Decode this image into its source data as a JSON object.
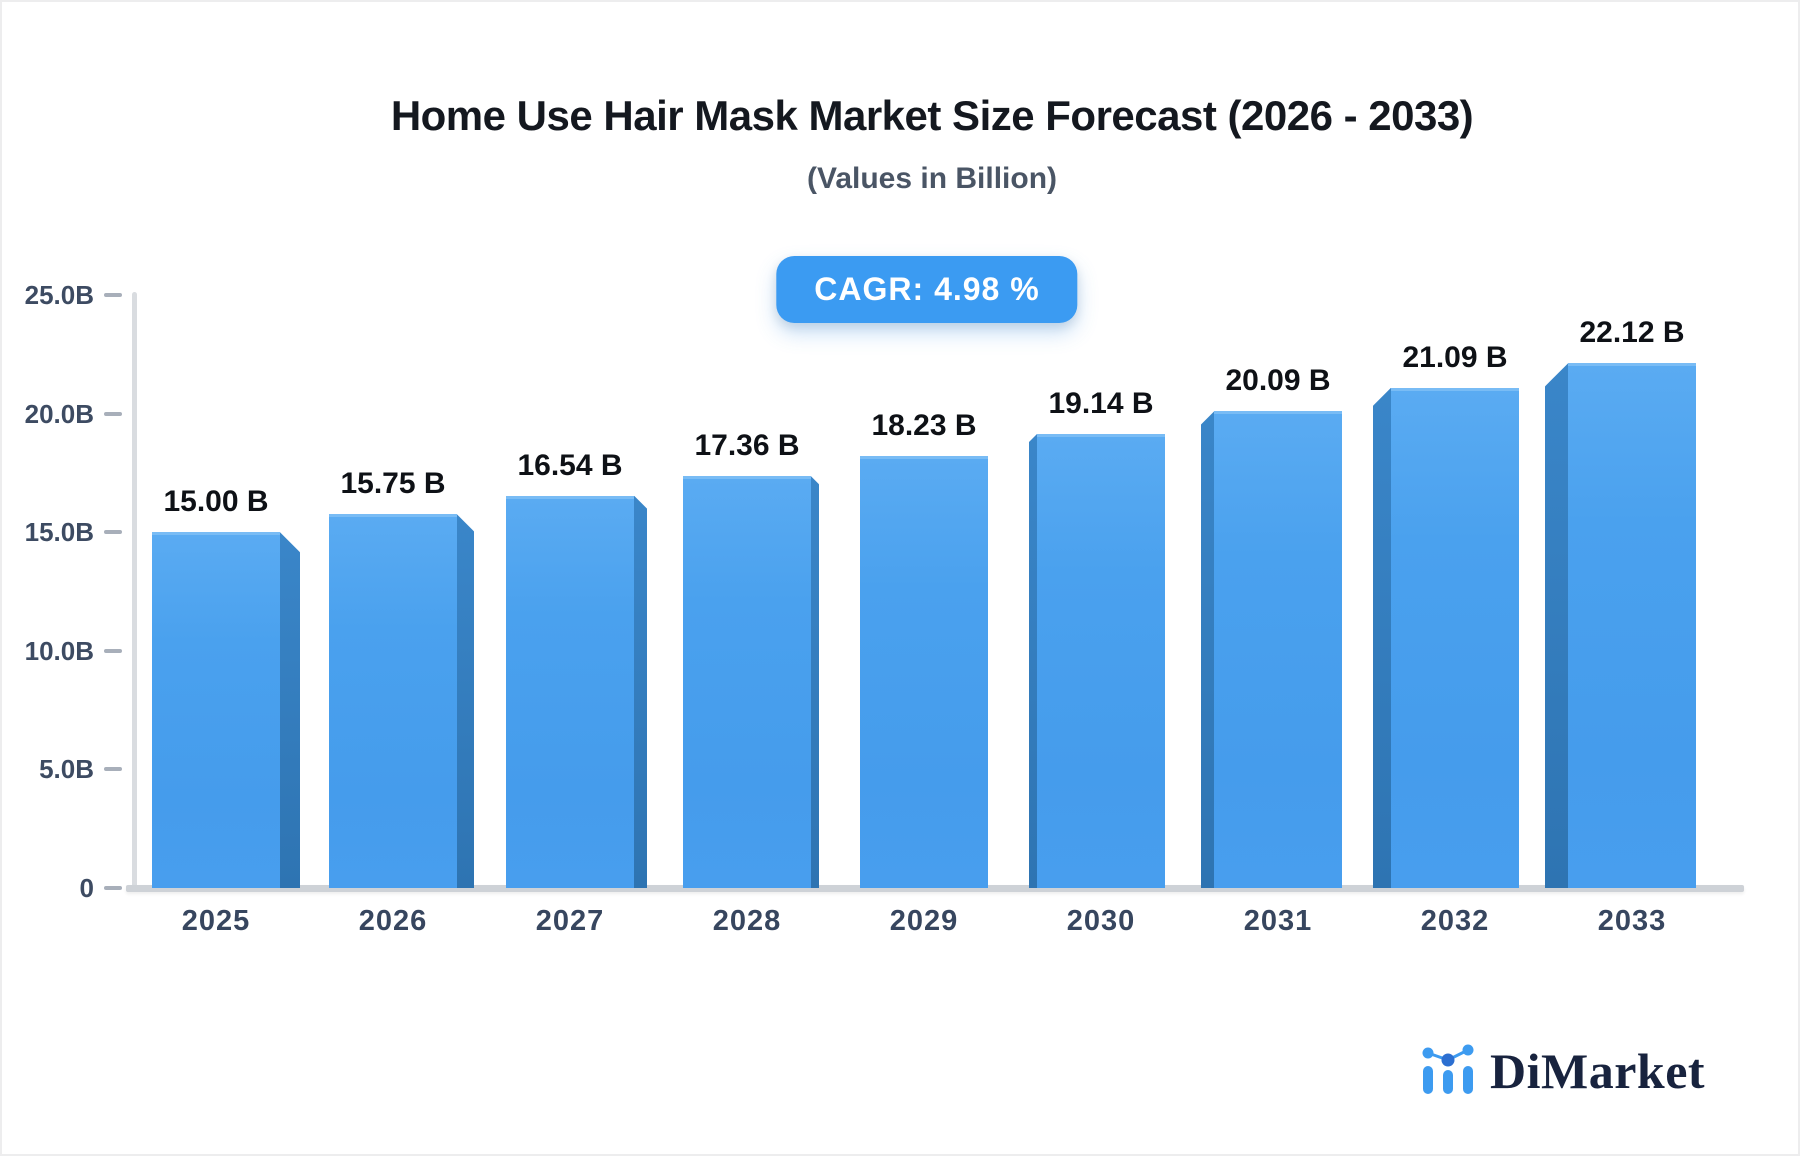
{
  "header": {
    "title": "Home Use Hair Mask Market Size Forecast (2026 - 2033)",
    "subtitle": "(Values in Billion)",
    "cagr_label": "CAGR: 4.98 %"
  },
  "chart_data": {
    "type": "bar",
    "title": "Home Use Hair Mask Market Size Forecast (2026 - 2033)",
    "subtitle": "(Values in Billion)",
    "annotation": "CAGR: 4.98 %",
    "unit": "Billion",
    "categories": [
      "2025",
      "2026",
      "2027",
      "2028",
      "2029",
      "2030",
      "2031",
      "2032",
      "2033"
    ],
    "values": [
      15.0,
      15.75,
      16.54,
      17.36,
      18.23,
      19.14,
      20.09,
      21.09,
      22.12
    ],
    "bar_labels": [
      "15.00 B",
      "15.75 B",
      "16.54 B",
      "17.36 B",
      "18.23 B",
      "19.14 B",
      "20.09 B",
      "21.09 B",
      "22.12 B"
    ],
    "xlabel": "",
    "ylabel": "",
    "ylim": [
      0,
      25
    ],
    "grid": false,
    "legend": false,
    "y_axis": {
      "tick_labels": [
        "25.0B",
        "20.0B",
        "15.0B",
        "10.0B",
        "5.0B",
        "0"
      ],
      "tick_values": [
        25,
        20,
        15,
        10,
        5,
        0
      ]
    }
  },
  "branding": {
    "name": "DiMarket",
    "icon": "bar-line-chart-icon"
  },
  "colors": {
    "accent_blue": "#3b9bf2",
    "bar_face": "#4aa1ee",
    "bar_face_highlight": "#79bcf5",
    "bar_side": "#2e74b2",
    "axis_gray": "#d2d6da",
    "tick_gray": "#a8afba",
    "title_text": "#14181f",
    "subtitle_text": "#4a5565",
    "axis_label_text": "#3d4b62",
    "category_text": "#37465f",
    "value_text": "#0e1116",
    "brand_navy": "#18233e",
    "brand_blue": "#3d9bf0",
    "brand_dot_dark": "#2c6fd1"
  }
}
